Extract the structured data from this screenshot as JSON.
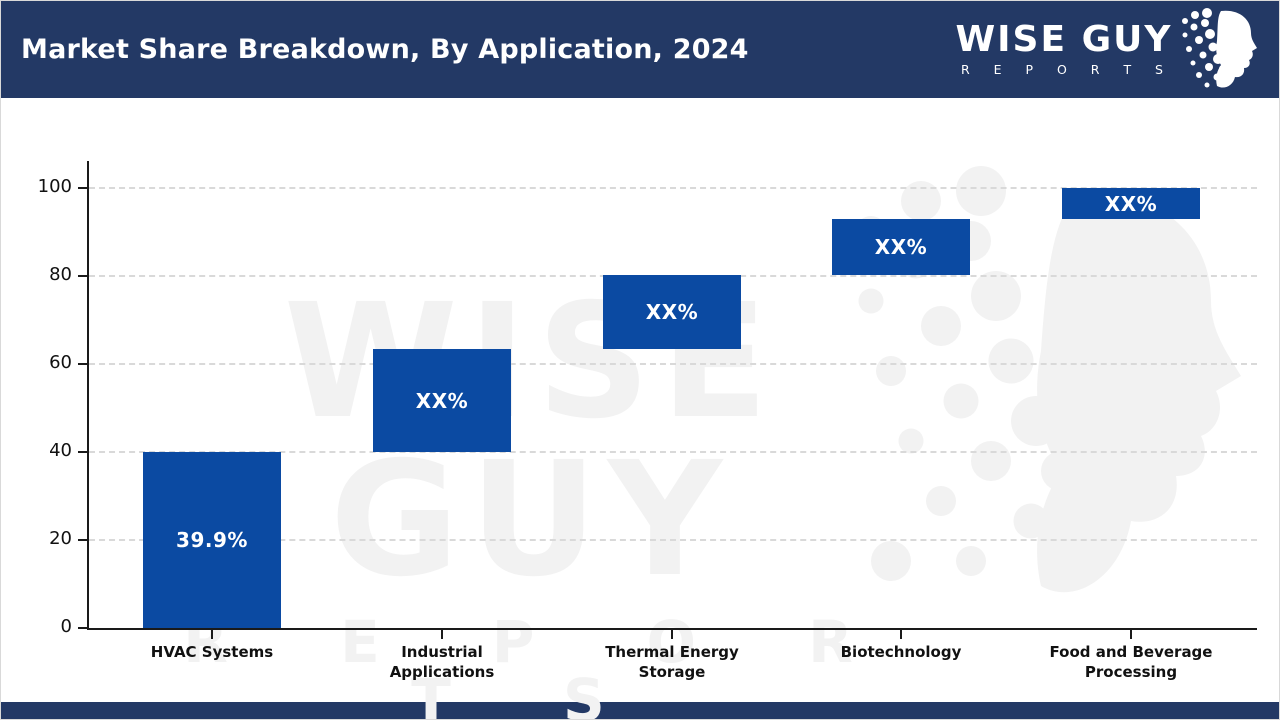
{
  "header": {
    "title": "Market Share Breakdown, By Application, 2024",
    "logo": {
      "name": "WISE GUY",
      "sub": "R E P O R T S"
    }
  },
  "watermark": {
    "line1": "WISE GUY",
    "line2": "R E P O R T S"
  },
  "colors": {
    "header_bg": "#233965",
    "footer_bg": "#233965",
    "bar": "#0B4AA2",
    "gridline": "#D9D9D9",
    "axis": "#1A1A1A",
    "bar_label": "#FFFFFF",
    "watermark": "#F2F2F2"
  },
  "chart_data": {
    "type": "bar",
    "subtype": "waterfall",
    "title": "Market Share Breakdown, By Application, 2024",
    "categories": [
      "HVAC Systems",
      "Industrial Applications",
      "Thermal Energy Storage",
      "Biotechnology",
      "Food and Beverage Processing"
    ],
    "segments": [
      {
        "category": "HVAC Systems",
        "start": 0,
        "end": 39.9,
        "label": "39.9%"
      },
      {
        "category": "Industrial Applications",
        "start": 39.9,
        "end": 63.5,
        "label": "XX%"
      },
      {
        "category": "Thermal Energy Storage",
        "start": 63.5,
        "end": 80.2,
        "label": "XX%"
      },
      {
        "category": "Biotechnology",
        "start": 80.2,
        "end": 92.9,
        "label": "XX%"
      },
      {
        "category": "Food and Beverage Processing",
        "start": 92.9,
        "end": 100,
        "label": "XX%"
      }
    ],
    "xlabel": "",
    "ylabel": "",
    "ylim": [
      0,
      100
    ],
    "yticks": [
      0,
      20,
      40,
      60,
      80,
      100
    ],
    "grid": "horizontal-dashed",
    "legend": "none"
  }
}
